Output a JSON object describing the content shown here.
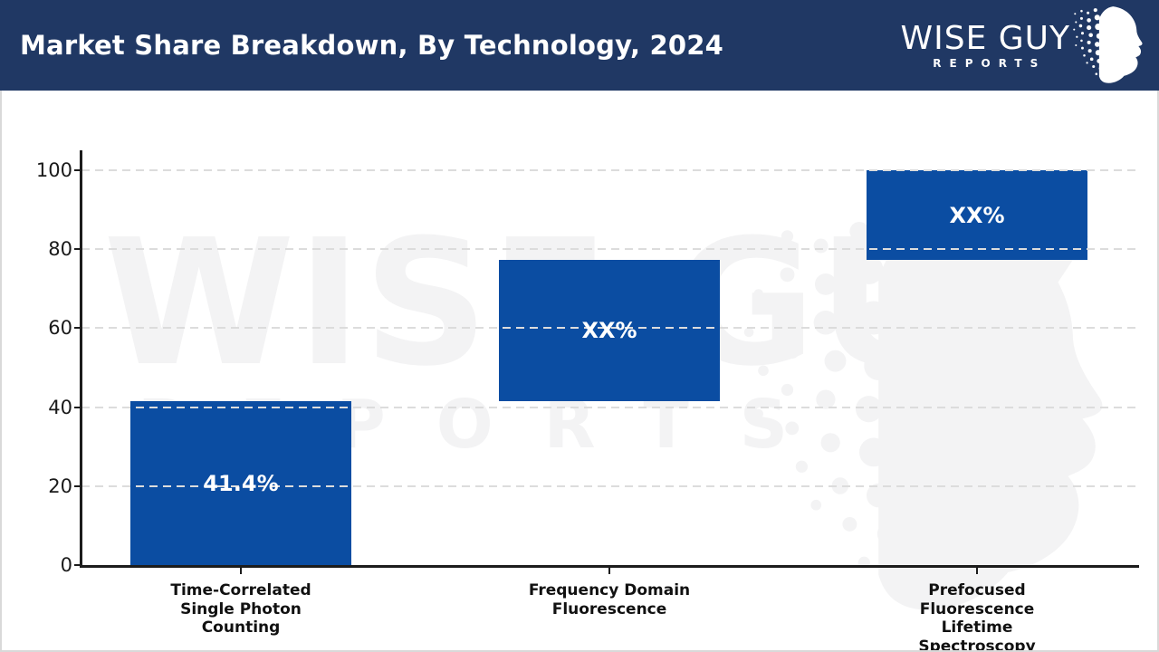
{
  "header": {
    "title": "Market Share Breakdown, By Technology, 2024",
    "logo_line1": "WISE GUY",
    "logo_line2": "REPORTS"
  },
  "watermark": {
    "line1": "WISE GUY",
    "line2": "REPORTS"
  },
  "chart_data": {
    "type": "bar",
    "subtype": "waterfall",
    "title": "Market Share Breakdown, By Technology, 2024",
    "xlabel": "",
    "ylabel": "",
    "ylim": [
      0,
      105
    ],
    "yticks": [
      0,
      20,
      40,
      60,
      80,
      100
    ],
    "grid": "horizontal dashed, drawn above bars",
    "legend": "none",
    "bar_color": "#0B4DA2",
    "value_label_color": "#FFFFFF",
    "categories": [
      [
        "Time-Correlated",
        "Single Photon",
        "Counting"
      ],
      [
        "Frequency Domain",
        "Fluorescence"
      ],
      [
        "Prefocused",
        "Fluorescence",
        "Lifetime",
        "Spectroscopy"
      ]
    ],
    "bars": [
      {
        "category": "Time-Correlated Single Photon Counting",
        "start": 0,
        "end": 41.4,
        "value_label": "41.4%"
      },
      {
        "category": "Frequency Domain Fluorescence",
        "start": 41.4,
        "end": 77.2,
        "value_label": "XX%"
      },
      {
        "category": "Prefocused Fluorescence Lifetime Spectroscopy",
        "start": 77.2,
        "end": 100,
        "value_label": "XX%"
      }
    ]
  }
}
